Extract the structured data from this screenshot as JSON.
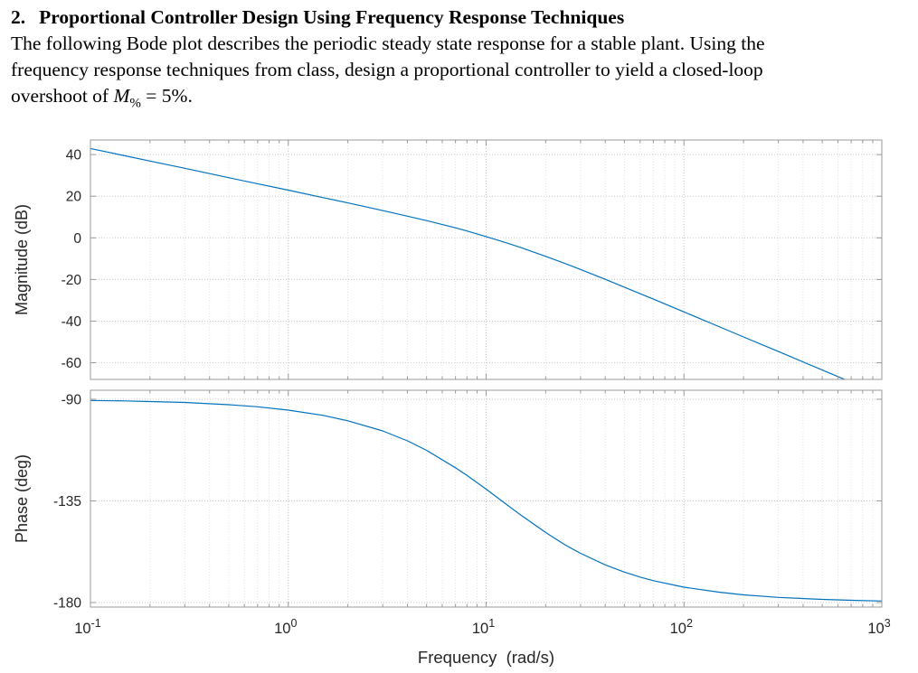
{
  "header": {
    "number": "2.",
    "title": "Proportional Controller Design Using Frequency Response Techniques",
    "body_lines": [
      "The following Bode plot describes the periodic steady state response for a stable plant. Using the",
      "frequency response techniques from class, design a proportional controller to yield a closed-loop"
    ],
    "body_line3_prefix": "overshoot of ",
    "math": {
      "variable": "M",
      "subscript": "%",
      "rest": " = 5%."
    }
  },
  "chart_data": {
    "type": "line",
    "title": "",
    "xlabel": "Frequency  (rad/s)",
    "x_scale": "log",
    "xlim": [
      0.1,
      1000
    ],
    "x_tick_exponents": [
      -1,
      0,
      1,
      2,
      3
    ],
    "grid": true,
    "line_color": "#0072BD",
    "x": [
      0.1,
      0.15,
      0.2,
      0.3,
      0.5,
      0.7,
      1,
      1.5,
      2,
      3,
      4,
      5,
      7,
      8,
      10,
      12,
      15,
      20,
      25,
      30,
      40,
      50,
      60,
      70,
      100,
      150,
      200,
      300,
      500,
      700,
      1000
    ],
    "subplots": [
      {
        "name": "magnitude",
        "ylabel": "Magnitude (dB)",
        "ylim": [
          -68,
          47
        ],
        "yticks": [
          40,
          20,
          0,
          -20,
          -40,
          -60
        ],
        "values": [
          42.9,
          39.4,
          36.9,
          33.4,
          28.9,
          26.0,
          22.9,
          19.3,
          16.8,
          13.1,
          10.4,
          8.3,
          4.8,
          3.3,
          0.6,
          -1.7,
          -4.7,
          -8.9,
          -12.3,
          -15.2,
          -19.9,
          -23.7,
          -26.8,
          -29.4,
          -35.6,
          -42.6,
          -47.6,
          -54.6,
          -63.5,
          -69.3,
          -75.5
        ]
      },
      {
        "name": "phase",
        "ylabel": "Phase (deg)",
        "ylim": [
          -182,
          -86
        ],
        "yticks": [
          -90,
          -135,
          -180
        ],
        "values": [
          -90.5,
          -90.7,
          -91.0,
          -91.4,
          -92.4,
          -93.3,
          -94.8,
          -97.1,
          -99.5,
          -104.0,
          -108.4,
          -112.6,
          -120.3,
          -123.7,
          -129.8,
          -135.0,
          -141.3,
          -149.0,
          -154.4,
          -158.2,
          -163.3,
          -166.5,
          -168.7,
          -170.3,
          -173.2,
          -175.4,
          -176.6,
          -177.7,
          -178.6,
          -179.0,
          -179.3
        ]
      }
    ]
  }
}
